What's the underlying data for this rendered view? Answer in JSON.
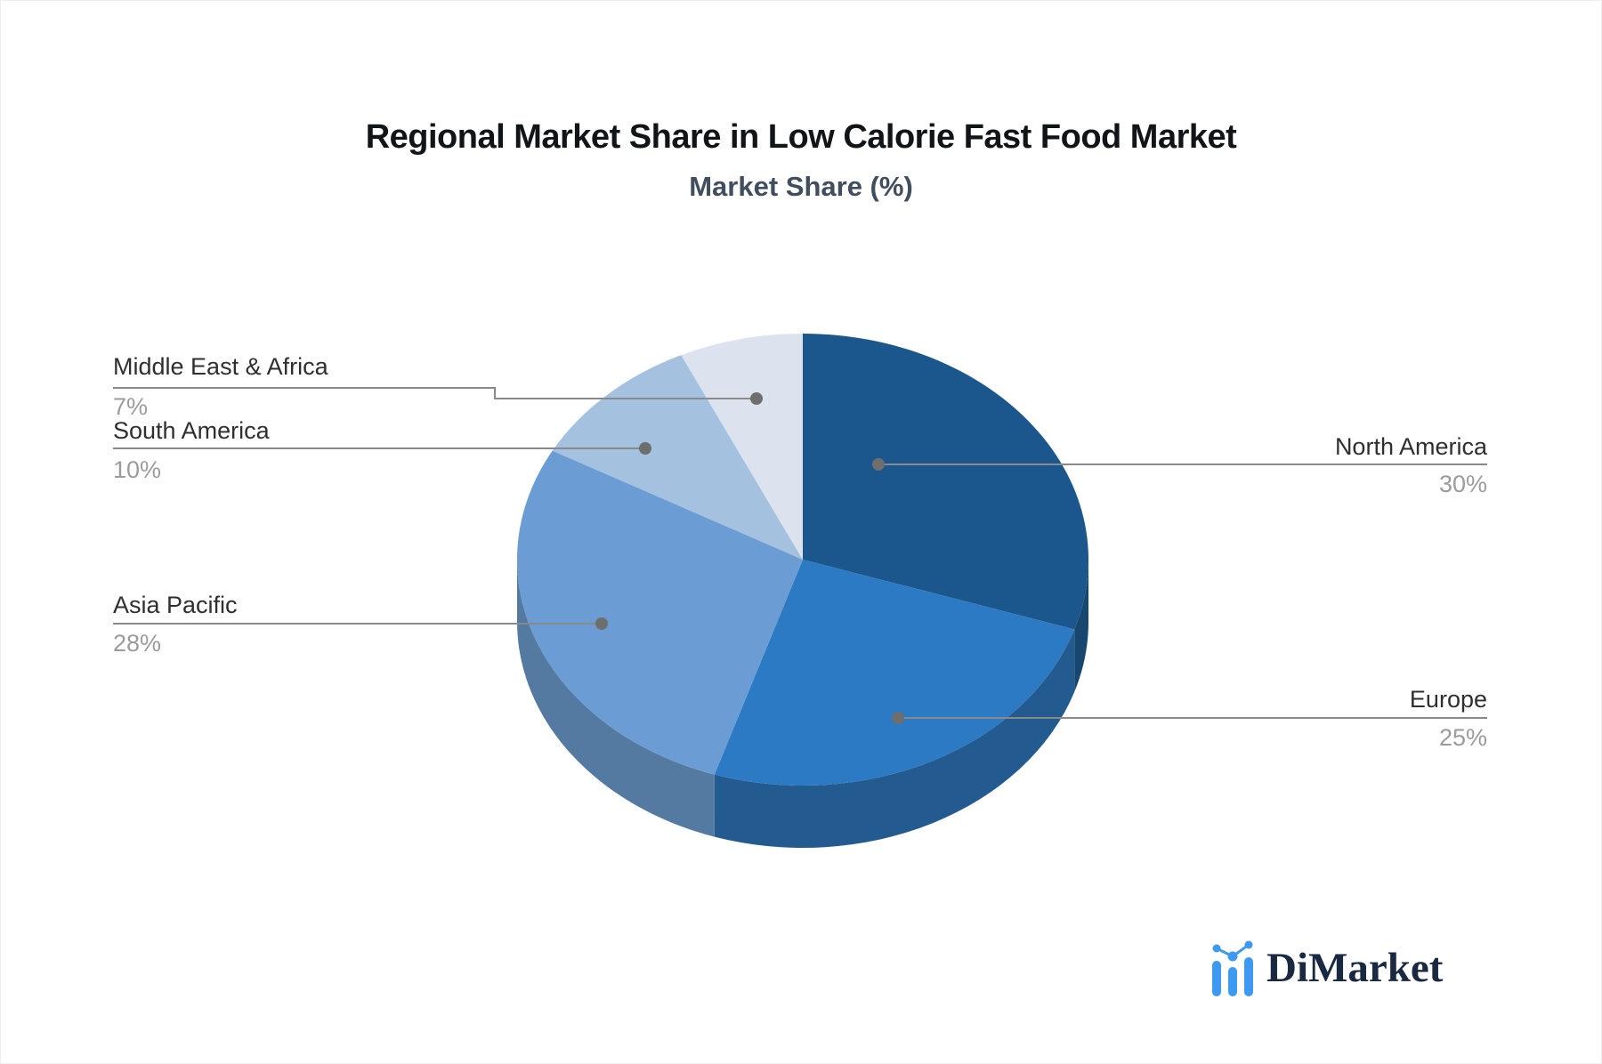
{
  "header": {
    "title": "Regional Market Share in Low Calorie Fast Food Market",
    "subtitle": "Market Share (%)"
  },
  "chart_data": {
    "type": "pie",
    "style": "3d",
    "title": "Regional Market Share in Low Calorie Fast Food Market",
    "subtitle": "Market Share (%)",
    "unit": "%",
    "start_angle_deg": 0,
    "direction": "clockwise",
    "legend_position": "callout-labels",
    "labels": [
      "North America",
      "Europe",
      "Asia Pacific",
      "South America",
      "Middle East & Africa"
    ],
    "values": [
      30,
      25,
      28,
      10,
      7
    ],
    "pct_labels": [
      "30%",
      "25%",
      "28%",
      "10%",
      "7%"
    ],
    "colors": [
      "#1b568c",
      "#2d7ac4",
      "#6b9dd4",
      "#a4c1df",
      "#dde3ee"
    ],
    "side_colors": [
      "#17466f",
      "#235a90",
      "#547aa2",
      "#84a3c2",
      "#b9c5d6"
    ]
  },
  "style_colors": {
    "connector_line": "#8a8a8a",
    "connector_dot": "#6e6e6e",
    "label_text": "#2f2f2f",
    "pct_text": "#9b9b9b",
    "title_text": "#121518",
    "subtitle_text": "#414e5e",
    "background": "#ffffff"
  },
  "brand": {
    "name": "DiMarket",
    "icon": "bar-line-chart-icon",
    "icon_color": "#3d9af0",
    "text_color": "#1a2942"
  }
}
